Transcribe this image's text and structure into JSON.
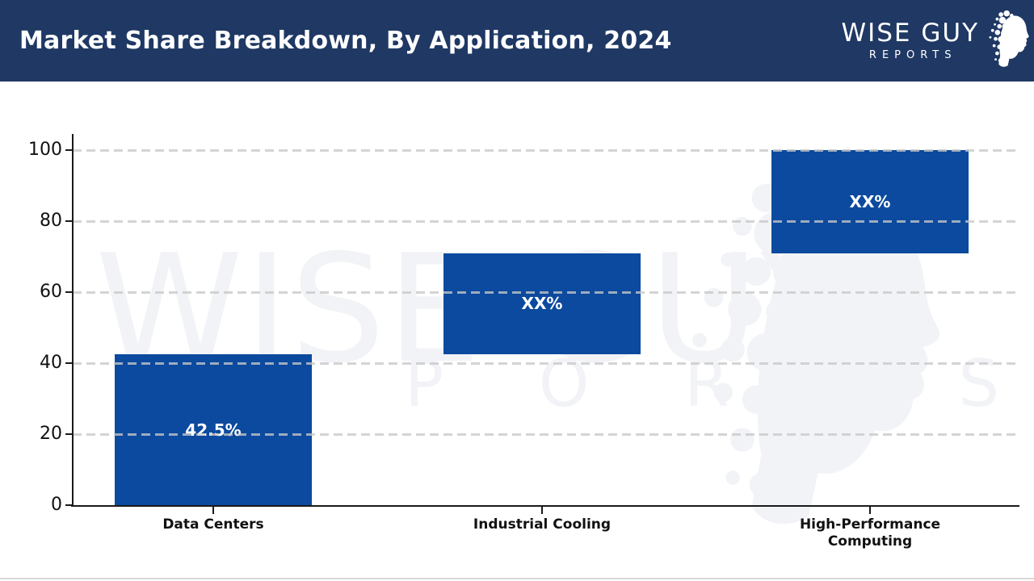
{
  "header": {
    "title": "Market Share Breakdown, By Application, 2024",
    "logo": {
      "line1": "WISE GUY",
      "line2": "REPORTS"
    }
  },
  "watermark": {
    "line1": "WISE GUY",
    "line2": "R E P O R T S"
  },
  "colors": {
    "header_bg": "#1f3864",
    "bar": "#0b4a9e",
    "bar_label": "#ffffff",
    "grid": "#cccccc",
    "axis": "#1a1a1a",
    "watermark": "#f2f3f6"
  },
  "chart_data": {
    "type": "bar",
    "subtype": "floating-waterfall",
    "title": "Market Share Breakdown, By Application, 2024",
    "xlabel": "",
    "ylabel": "",
    "categories": [
      "Data Centers",
      "Industrial Cooling",
      "High-Performance Computing"
    ],
    "segments": [
      {
        "category": "Data Centers",
        "start": 0,
        "end": 42.5,
        "label": "42.5%"
      },
      {
        "category": "Industrial Cooling",
        "start": 42.5,
        "end": 71,
        "label": "XX%"
      },
      {
        "category": "High-Performance Computing",
        "start": 71,
        "end": 100,
        "label": "XX%"
      }
    ],
    "y_axis": {
      "min": 0,
      "max": 100,
      "ticks": [
        0,
        20,
        40,
        60,
        80,
        100
      ]
    },
    "grid": "horizontal-dashed-over-bars",
    "legend": "none"
  }
}
